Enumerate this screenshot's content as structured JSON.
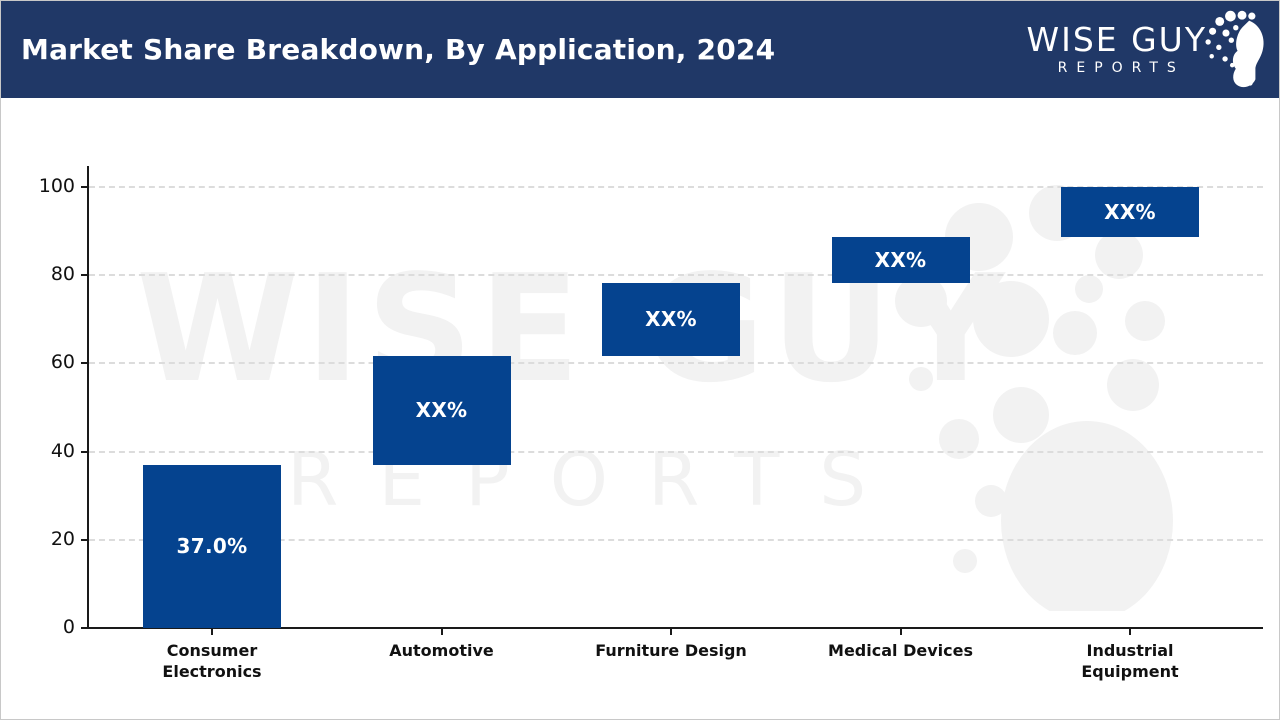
{
  "header": {
    "title": "Market Share Breakdown, By Application, 2024",
    "logo": {
      "name": "WISE GUY",
      "sub": "REPORTS"
    }
  },
  "watermark": {
    "line1": "WISE GUY",
    "line2": "REPORTS"
  },
  "colors": {
    "header_bg": "#203867",
    "bar": "#05438f",
    "grid": "#dcdcdc",
    "axis": "#1a1a1a",
    "frame_border": "#c8c8c8",
    "watermark": "#f2f2f2",
    "value_text": "#ffffff"
  },
  "chart_data": {
    "type": "bar",
    "subtype": "waterfall",
    "title": "Market Share Breakdown, By Application, 2024",
    "unit": "percent",
    "categories": [
      "Consumer\nElectronics",
      "Automotive",
      "Furniture Design",
      "Medical Devices",
      "Industrial\nEquipment"
    ],
    "segments": [
      {
        "category": "Consumer Electronics",
        "start": 0,
        "end": 37,
        "label": "37.0%"
      },
      {
        "category": "Automotive",
        "start": 37,
        "end": 61.7,
        "label": "XX%"
      },
      {
        "category": "Furniture Design",
        "start": 61.7,
        "end": 78.3,
        "label": "XX%"
      },
      {
        "category": "Medical Devices",
        "start": 78.3,
        "end": 88.6,
        "label": "XX%"
      },
      {
        "category": "Industrial Equipment",
        "start": 88.6,
        "end": 100,
        "label": "XX%"
      }
    ],
    "yticks": [
      0,
      20,
      40,
      60,
      80,
      100
    ],
    "ylim": [
      0,
      104.8
    ],
    "grid": "horizontal-dashed",
    "legend": false
  }
}
